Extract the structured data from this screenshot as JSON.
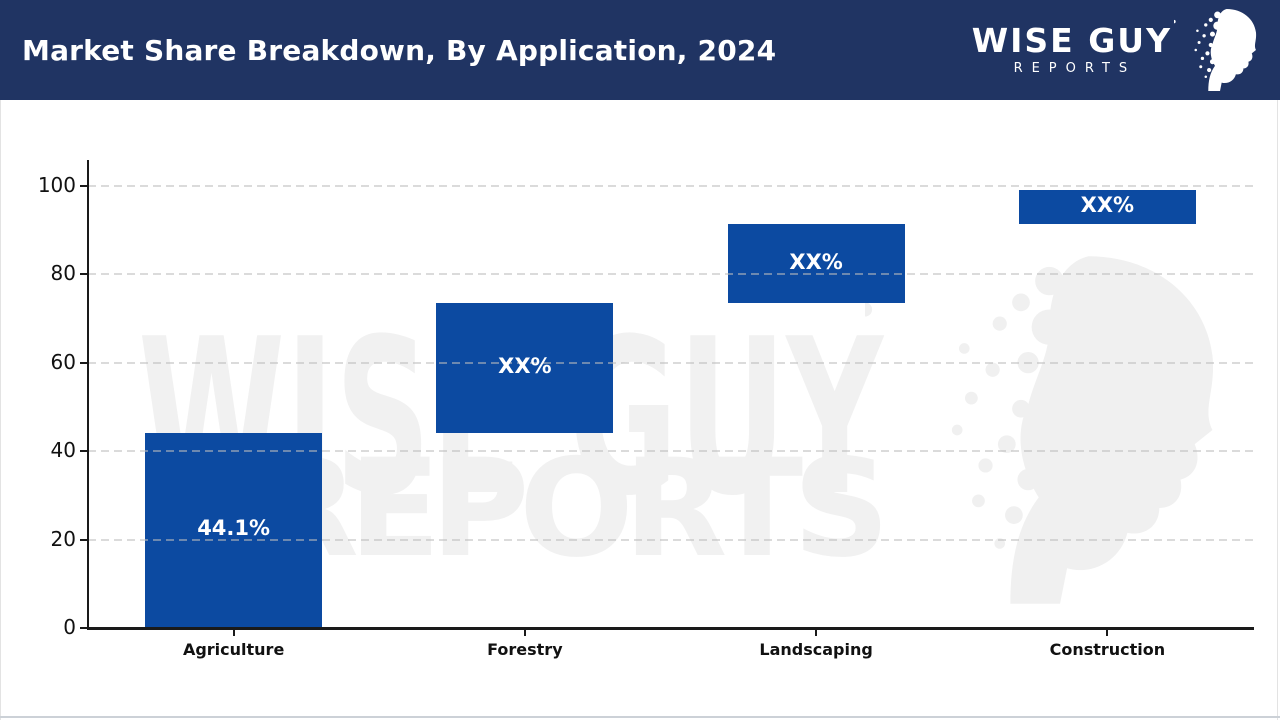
{
  "header": {
    "title": "Market Share Breakdown, By Application, 2024",
    "brand": {
      "line1": "WISE GUY",
      "line2": "REPORTS"
    },
    "bg_color": "#203463",
    "text_color": "#ffffff"
  },
  "watermark": {
    "line1": "WISE GUY",
    "line2": "REPORTS",
    "color": "#f1f1f1"
  },
  "icons": {
    "brand_head": "dotted-head-profile-icon"
  },
  "chart_data": {
    "type": "bar",
    "subtype": "waterfall",
    "title": "Market Share Breakdown, By Application, 2024",
    "categories": [
      "Agriculture",
      "Forestry",
      "Landscaping",
      "Construction"
    ],
    "segments": [
      {
        "category": "Agriculture",
        "start": 0,
        "end": 44.1,
        "label": "44.1%"
      },
      {
        "category": "Forestry",
        "start": 44.1,
        "end": 73.4,
        "label": "XX%"
      },
      {
        "category": "Landscaping",
        "start": 73.4,
        "end": 91.2,
        "label": "XX%"
      },
      {
        "category": "Construction",
        "start": 91.2,
        "end": 98.9,
        "label": "XX%"
      }
    ],
    "xlabel": "",
    "ylabel": "",
    "yticks": [
      0,
      20,
      40,
      60,
      80,
      100
    ],
    "ylim": [
      0,
      105
    ],
    "grid": "horizontal-dashed",
    "legend": "none",
    "bar_color": "#0c4aa1",
    "bar_label_color": "#ffffff",
    "axis_color": "#1a1a1a"
  }
}
